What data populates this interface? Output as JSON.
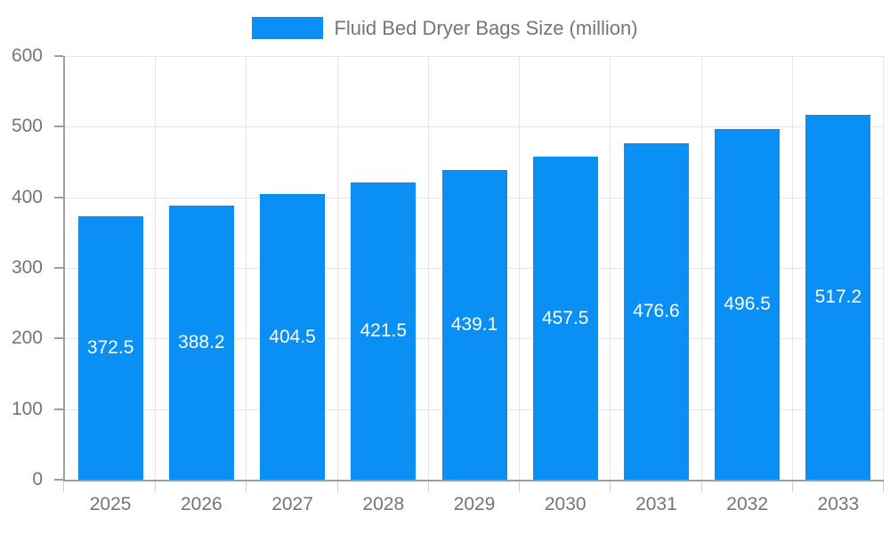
{
  "legend": {
    "label": "Fluid Bed Dryer Bags Size (million)"
  },
  "colors": {
    "bar": "#0a8ff5",
    "bar_label_text": "#ffffff",
    "axis_text": "#757575",
    "grid_line": "#e6e6e6",
    "axis_line": "#9e9e9e",
    "tick_line": "#cccccc"
  },
  "chart_data": {
    "type": "bar",
    "title": "Fluid Bed Dryer Bags Size (million)",
    "legend_entries": [
      "Fluid Bed Dryer Bags Size (million)"
    ],
    "legend_position": "top-center",
    "categories": [
      "2025",
      "2026",
      "2027",
      "2028",
      "2029",
      "2030",
      "2031",
      "2032",
      "2033"
    ],
    "series": [
      {
        "name": "Fluid Bed Dryer Bags Size (million)",
        "values": [
          372.5,
          388.2,
          404.5,
          421.5,
          439.1,
          457.5,
          476.6,
          496.5,
          517.2
        ]
      }
    ],
    "data_labels": [
      "372.5",
      "388.2",
      "404.5",
      "421.5",
      "439.1",
      "457.5",
      "476.6",
      "496.5",
      "517.2"
    ],
    "data_label_placement": "inside-center",
    "xlabel": "",
    "ylabel": "",
    "ylim": [
      0,
      600
    ],
    "y_ticks": [
      0,
      100,
      200,
      300,
      400,
      500,
      600
    ],
    "grid": true
  }
}
